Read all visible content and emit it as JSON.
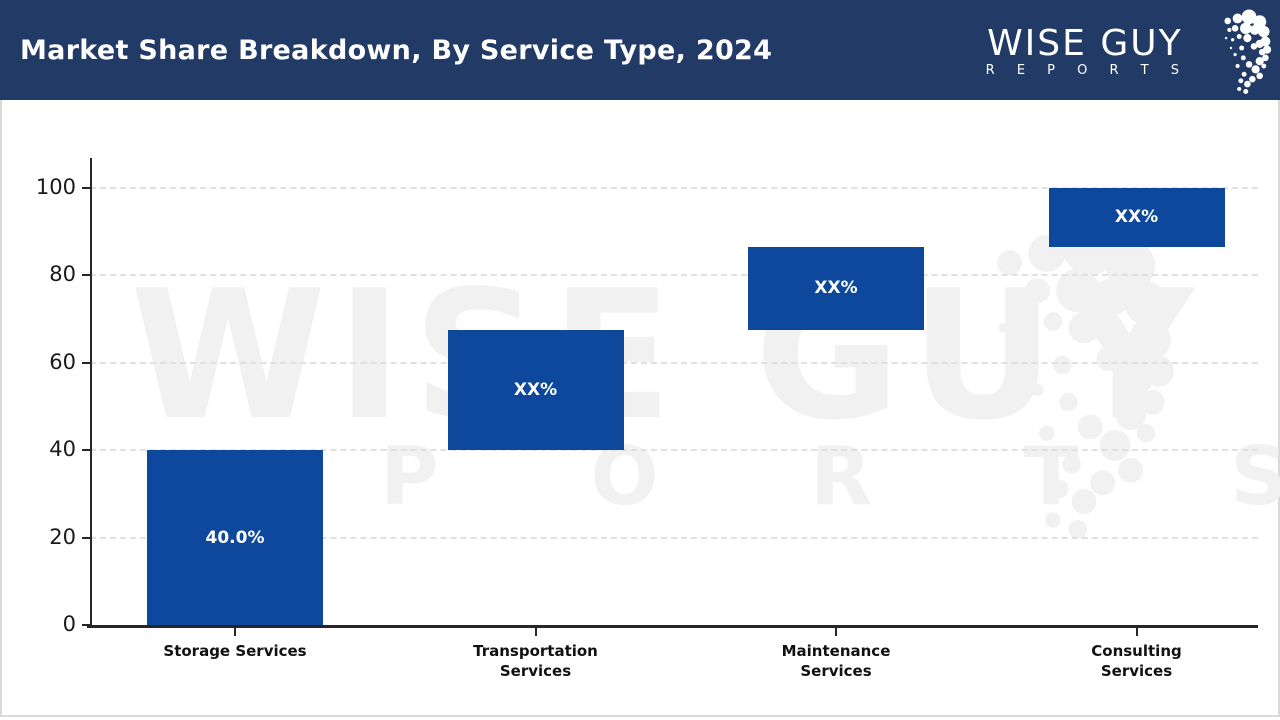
{
  "header": {
    "title": "Market Share Breakdown, By Service Type, 2024",
    "logo": {
      "line1": "WISE GUY",
      "line2": "R E P O R T S"
    }
  },
  "watermark": {
    "line1": "WISE GUY",
    "line2": "P O R T S"
  },
  "colors": {
    "header_bg": "#213a66",
    "bar": "#0d489c",
    "bar_label": "#ffffff",
    "axis": "#262626",
    "gridline": "#e0e0e0",
    "watermark": "#f1f1f1"
  },
  "chart_data": {
    "type": "bar",
    "subtype": "waterfall",
    "title": "Market Share Breakdown, By Service Type, 2024",
    "xlabel": "",
    "ylabel": "",
    "ylim": [
      0,
      106
    ],
    "yticks": [
      0,
      20,
      40,
      60,
      80,
      100
    ],
    "grid": "horizontal dashed",
    "legend": "none",
    "categories": [
      "Storage Services",
      "Transportation Services",
      "Maintenance Services",
      "Consulting Services"
    ],
    "bars": [
      {
        "category_lines": [
          "Storage Services"
        ],
        "start": 0,
        "end": 40,
        "value": 40.0,
        "label": "40.0%"
      },
      {
        "category_lines": [
          "Transportation",
          "Services"
        ],
        "start": 40,
        "end": 67.5,
        "value": 27.5,
        "label": "XX%"
      },
      {
        "category_lines": [
          "Maintenance",
          "Services"
        ],
        "start": 67.5,
        "end": 86.5,
        "value": 19.0,
        "label": "XX%"
      },
      {
        "category_lines": [
          "Consulting",
          "Services"
        ],
        "start": 86.5,
        "end": 100,
        "value": 13.5,
        "label": "XX%"
      }
    ]
  }
}
